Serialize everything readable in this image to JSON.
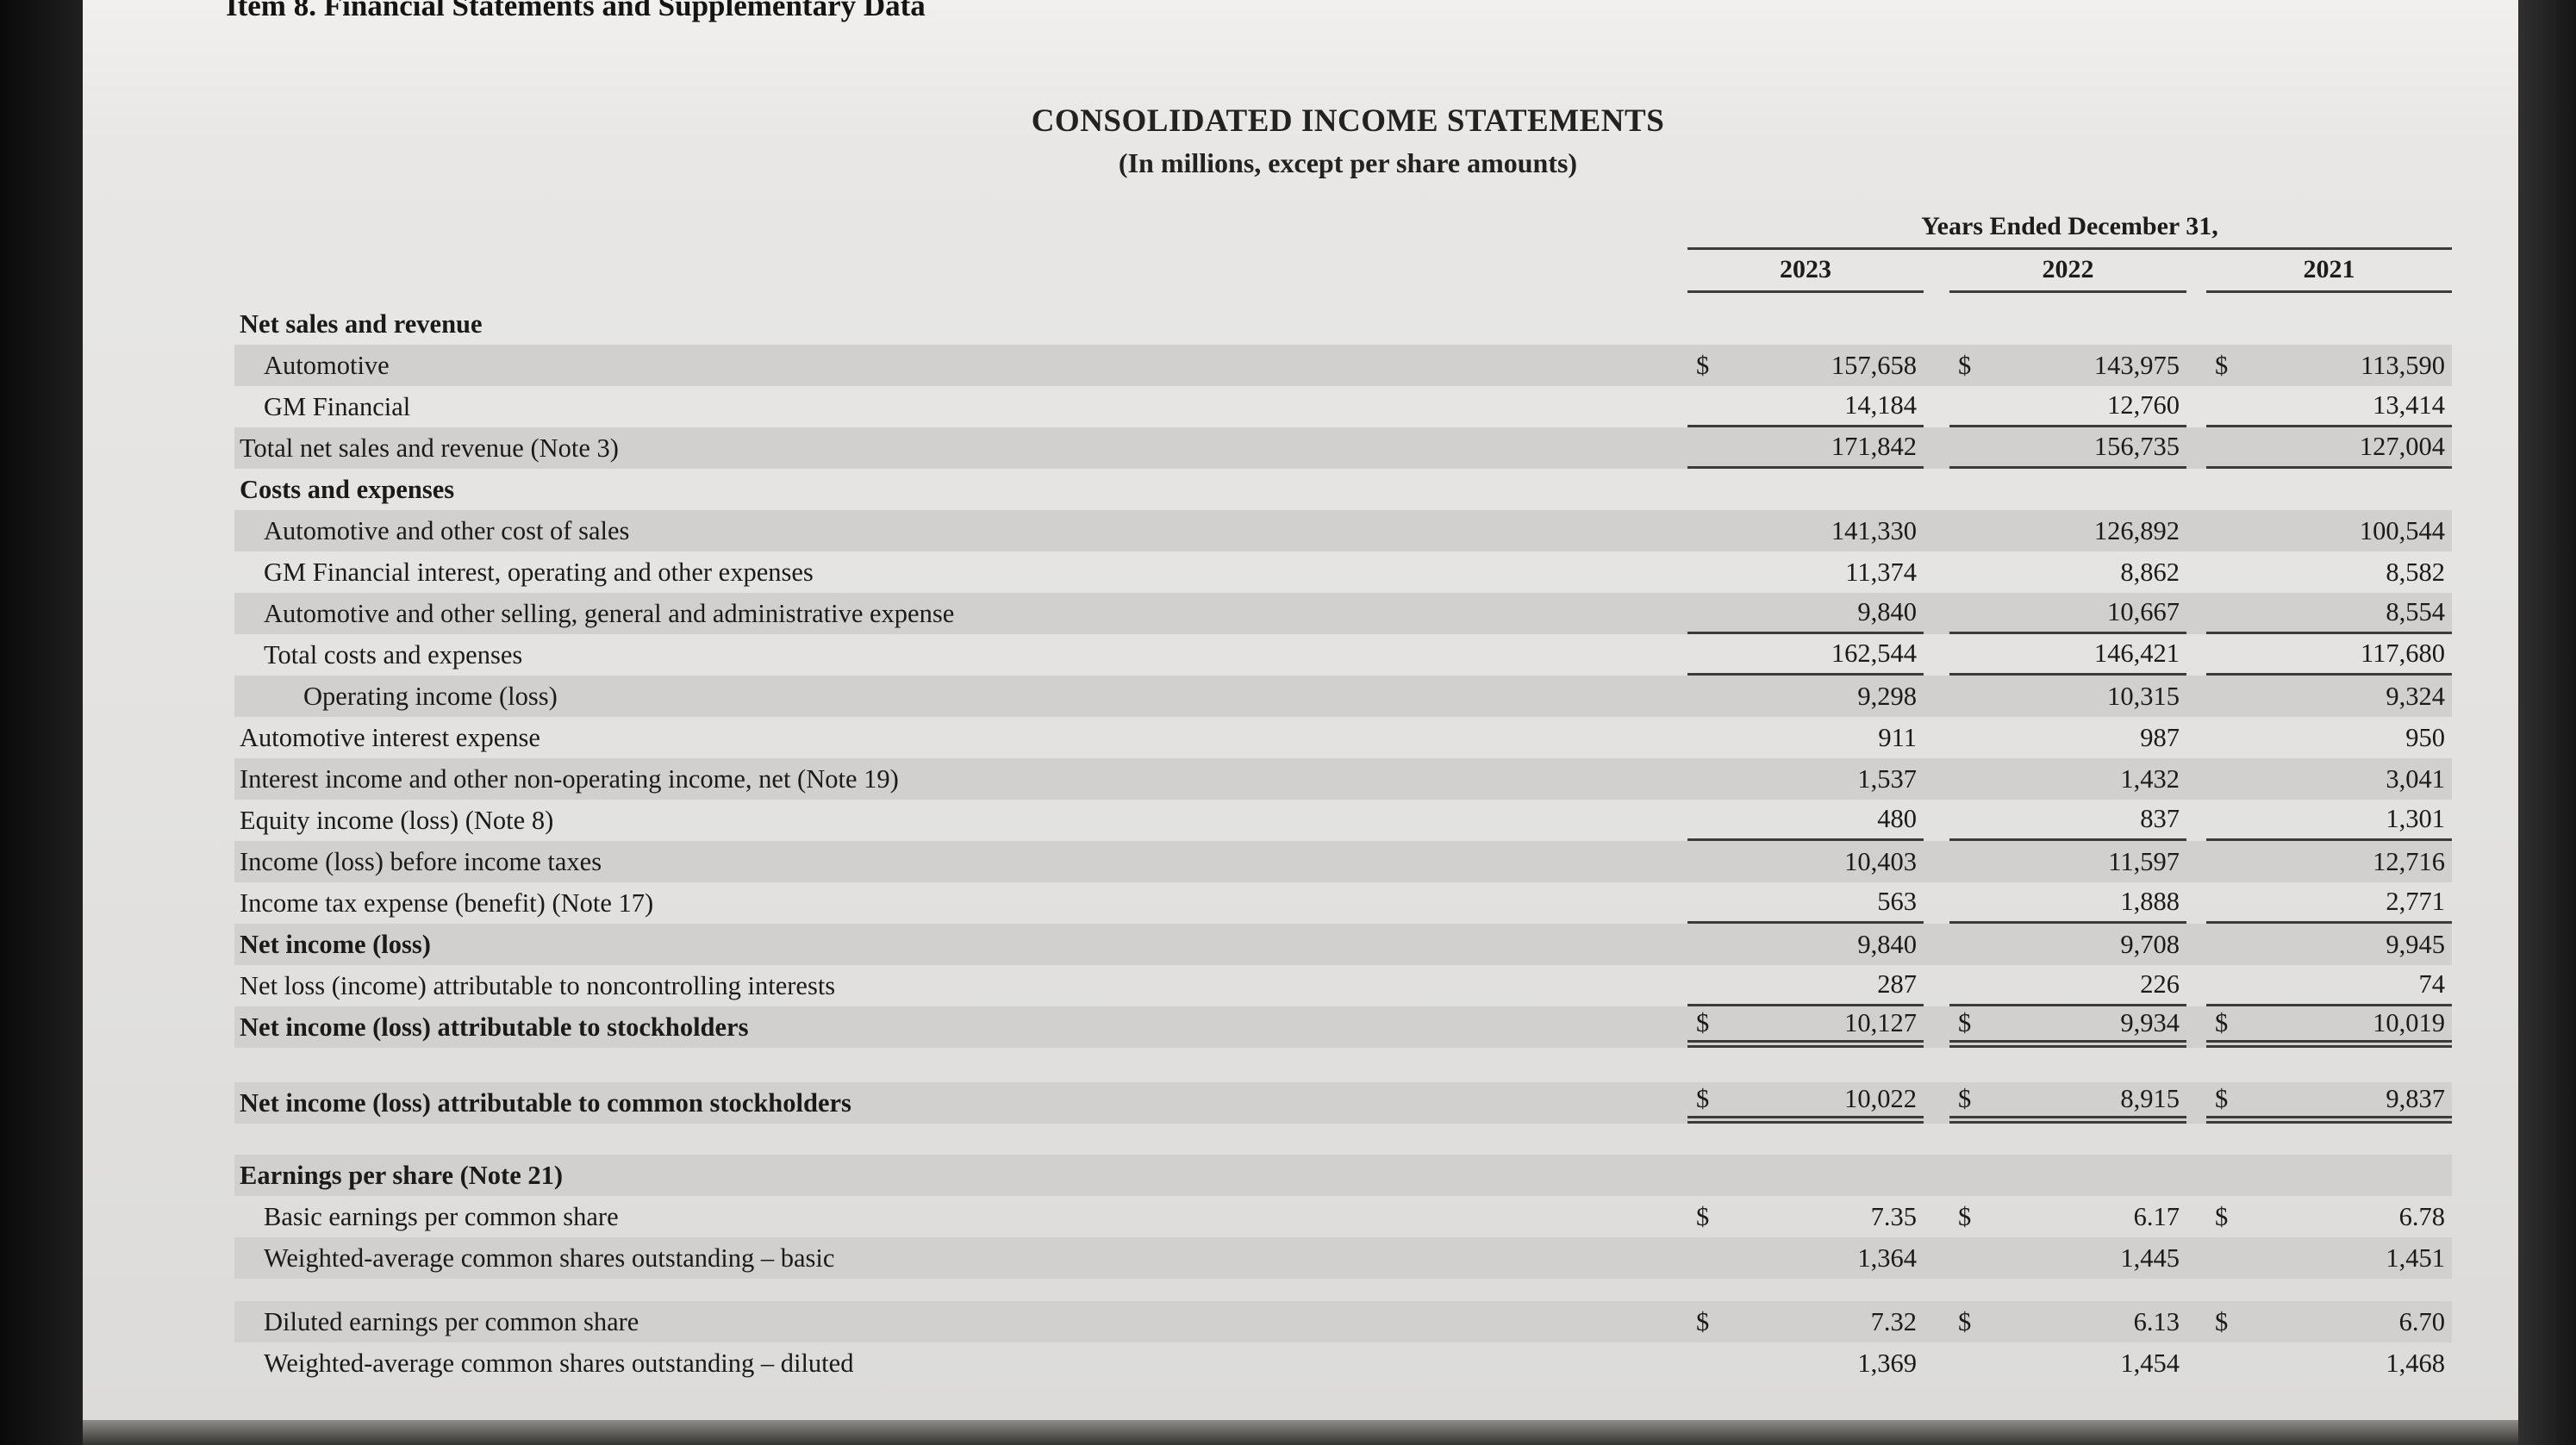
{
  "page": {
    "header": "Item 8. Financial Statements and Supplementary Data",
    "title": "CONSOLIDATED INCOME STATEMENTS",
    "subtitle": "(In millions, except per share amounts)",
    "period_header": "Years Ended December 31,",
    "currency_symbol": "$"
  },
  "table": {
    "columns": [
      "2023",
      "2022",
      "2021"
    ],
    "rows": [
      {
        "label": "Net sales and revenue",
        "indent": 0,
        "bold": true,
        "shaded": false,
        "values": null
      },
      {
        "label": "Automotive",
        "indent": 1,
        "shaded": true,
        "dollar": true,
        "values": [
          "157,658",
          "143,975",
          "113,590"
        ]
      },
      {
        "label": "GM Financial",
        "indent": 1,
        "shaded": false,
        "values": [
          "14,184",
          "12,760",
          "13,414"
        ],
        "line": "single"
      },
      {
        "label": "Total net sales and revenue (Note 3)",
        "indent": 0,
        "shaded": true,
        "values": [
          "171,842",
          "156,735",
          "127,004"
        ],
        "line": "single"
      },
      {
        "label": "Costs and expenses",
        "indent": 0,
        "bold": true,
        "shaded": false,
        "values": null
      },
      {
        "label": "Automotive and other cost of sales",
        "indent": 1,
        "shaded": true,
        "values": [
          "141,330",
          "126,892",
          "100,544"
        ]
      },
      {
        "label": "GM Financial interest, operating and other expenses",
        "indent": 1,
        "shaded": false,
        "values": [
          "11,374",
          "8,862",
          "8,582"
        ]
      },
      {
        "label": "Automotive and other selling, general and administrative expense",
        "indent": 1,
        "shaded": true,
        "values": [
          "9,840",
          "10,667",
          "8,554"
        ],
        "line": "single"
      },
      {
        "label": "Total costs and expenses",
        "indent": 1,
        "shaded": false,
        "values": [
          "162,544",
          "146,421",
          "117,680"
        ],
        "line": "single"
      },
      {
        "label": "Operating income (loss)",
        "indent": 2,
        "shaded": true,
        "values": [
          "9,298",
          "10,315",
          "9,324"
        ]
      },
      {
        "label": "Automotive interest expense",
        "indent": 0,
        "shaded": false,
        "values": [
          "911",
          "987",
          "950"
        ]
      },
      {
        "label": "Interest income and other non-operating income, net (Note 19)",
        "indent": 0,
        "shaded": true,
        "values": [
          "1,537",
          "1,432",
          "3,041"
        ]
      },
      {
        "label": "Equity income (loss) (Note 8)",
        "indent": 0,
        "shaded": false,
        "values": [
          "480",
          "837",
          "1,301"
        ],
        "line": "single"
      },
      {
        "label": "Income (loss) before income taxes",
        "indent": 0,
        "shaded": true,
        "values": [
          "10,403",
          "11,597",
          "12,716"
        ]
      },
      {
        "label": "Income tax expense (benefit) (Note 17)",
        "indent": 0,
        "shaded": false,
        "values": [
          "563",
          "1,888",
          "2,771"
        ],
        "line": "single"
      },
      {
        "label": "Net income (loss)",
        "indent": 0,
        "bold": true,
        "shaded": true,
        "values": [
          "9,840",
          "9,708",
          "9,945"
        ]
      },
      {
        "label": "Net loss (income) attributable to noncontrolling interests",
        "indent": 0,
        "shaded": false,
        "values": [
          "287",
          "226",
          "74"
        ],
        "line": "single"
      },
      {
        "label": "Net income (loss) attributable to stockholders",
        "indent": 0,
        "bold": true,
        "shaded": true,
        "dollar": true,
        "values": [
          "10,127",
          "9,934",
          "10,019"
        ],
        "line": "double"
      },
      {
        "type": "spacer",
        "height": 40
      },
      {
        "label": "Net income (loss) attributable to common stockholders",
        "indent": 0,
        "bold": true,
        "shaded": true,
        "dollar": true,
        "values": [
          "10,022",
          "8,915",
          "9,837"
        ],
        "line": "double"
      },
      {
        "type": "spacer",
        "height": 36
      },
      {
        "label": "Earnings per share (Note 21)",
        "indent": 0,
        "bold": true,
        "shaded": true,
        "values": null
      },
      {
        "label": "Basic earnings per common share",
        "indent": 1,
        "shaded": false,
        "dollar": true,
        "values": [
          "7.35",
          "6.17",
          "6.78"
        ]
      },
      {
        "label": "Weighted-average common shares outstanding – basic",
        "indent": 1,
        "shaded": true,
        "values": [
          "1,364",
          "1,445",
          "1,451"
        ]
      },
      {
        "type": "spacer",
        "height": 26
      },
      {
        "label": "Diluted earnings per common share",
        "indent": 1,
        "shaded": true,
        "dollar": true,
        "values": [
          "7.32",
          "6.13",
          "6.70"
        ]
      },
      {
        "label": "Weighted-average common shares outstanding – diluted",
        "indent": 1,
        "shaded": false,
        "values": [
          "1,369",
          "1,454",
          "1,468"
        ]
      }
    ]
  }
}
